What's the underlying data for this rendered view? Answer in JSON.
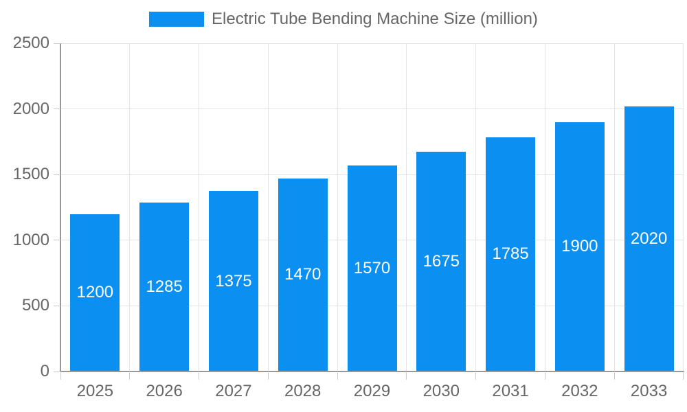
{
  "chart_data": {
    "type": "bar",
    "title": "Electric Tube Bending Machine Size (million)",
    "categories": [
      "2025",
      "2026",
      "2027",
      "2028",
      "2029",
      "2030",
      "2031",
      "2032",
      "2033"
    ],
    "values": [
      1200,
      1285,
      1375,
      1470,
      1570,
      1675,
      1785,
      1900,
      2020
    ],
    "xlabel": "",
    "ylabel": "",
    "ylim": [
      0,
      2500
    ],
    "yticks": [
      0,
      500,
      1000,
      1500,
      2000,
      2500
    ],
    "grid": true,
    "legend_position": "top-center",
    "bar_value_label_position": "inside-center",
    "colors": {
      "bar": "#0b90f2",
      "bar_label": "#ffffff",
      "axis_text": "#666666",
      "grid": "#e3e3e3",
      "tick": "#cccccc",
      "axis_line": "#999999",
      "background": "#ffffff"
    }
  }
}
